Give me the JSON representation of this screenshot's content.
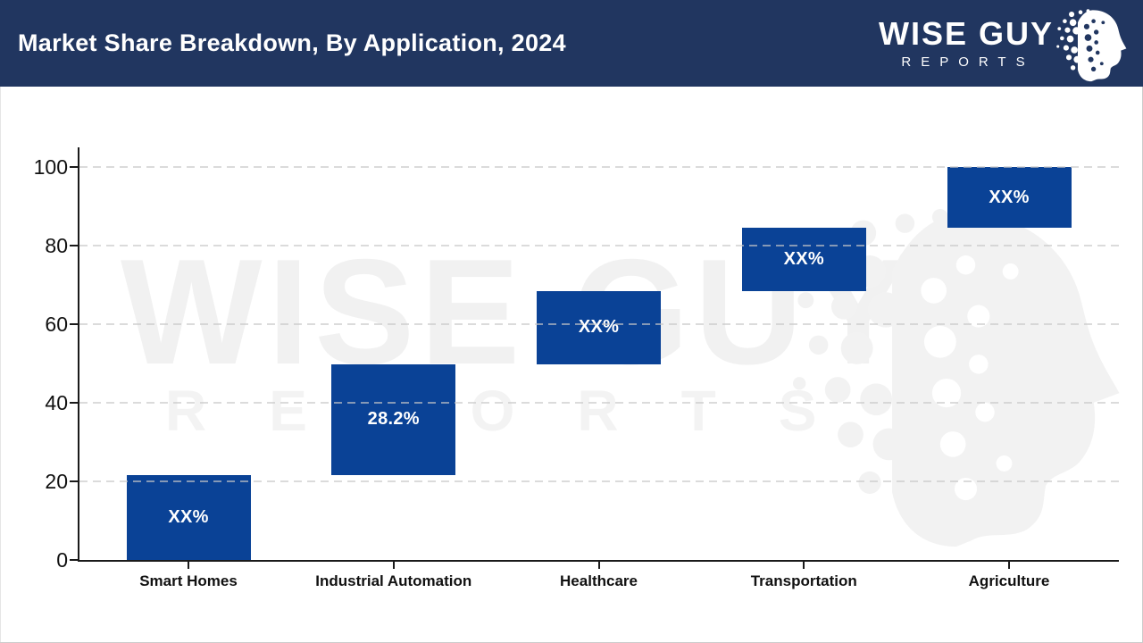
{
  "header": {
    "title": "Market Share Breakdown, By Application, 2024",
    "logo": {
      "line1": "WISE GUY",
      "line2": "REPORTS"
    }
  },
  "watermark": {
    "line1": "WISE GUY",
    "line2": "REPORTS"
  },
  "chart_data": {
    "type": "bar",
    "subtype": "floating-stacked-waterfall",
    "title": "Market Share Breakdown, By Application, 2024",
    "categories": [
      "Smart Homes",
      "Industrial Automation",
      "Healthcare",
      "Transportation",
      "Agriculture"
    ],
    "segments": [
      {
        "category": "Smart Homes",
        "start": 0,
        "end": 21.6,
        "value_label": "XX%"
      },
      {
        "category": "Industrial Automation",
        "start": 21.6,
        "end": 49.8,
        "value_label": "28.2%"
      },
      {
        "category": "Healthcare",
        "start": 49.8,
        "end": 68.4,
        "value_label": "XX%"
      },
      {
        "category": "Transportation",
        "start": 68.4,
        "end": 84.5,
        "value_label": "XX%"
      },
      {
        "category": "Agriculture",
        "start": 84.5,
        "end": 100,
        "value_label": "XX%"
      }
    ],
    "yticks": [
      0,
      20,
      40,
      60,
      80,
      100
    ],
    "ylim": [
      0,
      105
    ],
    "xlabel": "",
    "ylabel": "",
    "grid": "dashed-horizontal",
    "legend_position": "none",
    "bar_color": "#0a4296",
    "bar_label_color": "#ffffff"
  },
  "colors": {
    "header_bg": "#213660",
    "bar": "#0a4296",
    "axis": "#1a1a1a",
    "grid": "#cdcdcd",
    "watermark": "#f1f1f1"
  }
}
